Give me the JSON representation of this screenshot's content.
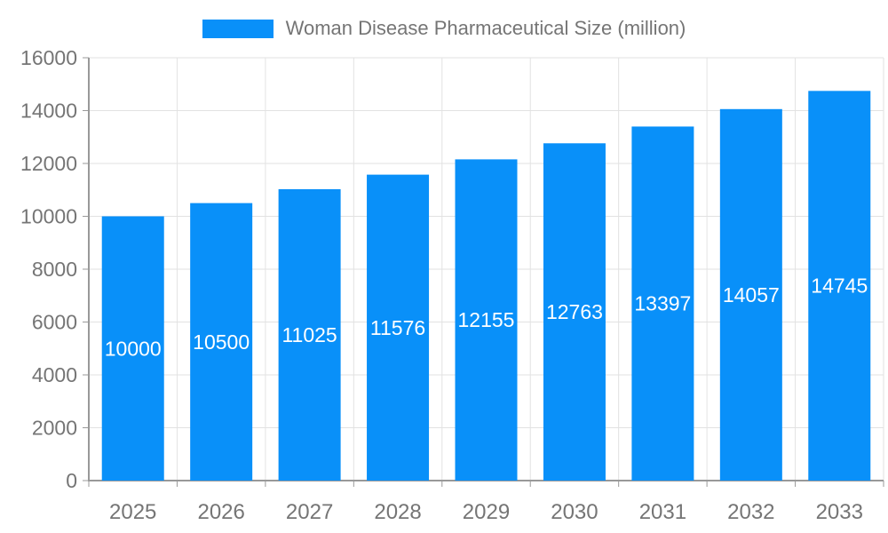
{
  "legend": {
    "label": "Woman Disease Pharmaceutical Size (million)",
    "swatch_color": "#0990f9"
  },
  "chart_data": {
    "type": "bar",
    "title": "Woman Disease Pharmaceutical Size (million)",
    "categories": [
      "2025",
      "2026",
      "2027",
      "2028",
      "2029",
      "2030",
      "2031",
      "2032",
      "2033"
    ],
    "values": [
      10000,
      10500,
      11025,
      11576,
      12155,
      12763,
      13397,
      14057,
      14745
    ],
    "bar_value_labels": [
      "10000",
      "10500",
      "11025",
      "11576",
      "12155",
      "12763",
      "13397",
      "14057",
      "14745"
    ],
    "xlabel": "",
    "ylabel": "",
    "ylim": [
      0,
      16000
    ],
    "yticks": [
      0,
      2000,
      4000,
      6000,
      8000,
      10000,
      12000,
      14000,
      16000
    ],
    "grid": true,
    "legend_position": "top-center",
    "colors": {
      "bar": "#0990f9",
      "bar_label": "#ffffff",
      "grid": "#e2e2e2",
      "axis": "#999999",
      "text": "#757575",
      "background": "#ffffff"
    }
  }
}
